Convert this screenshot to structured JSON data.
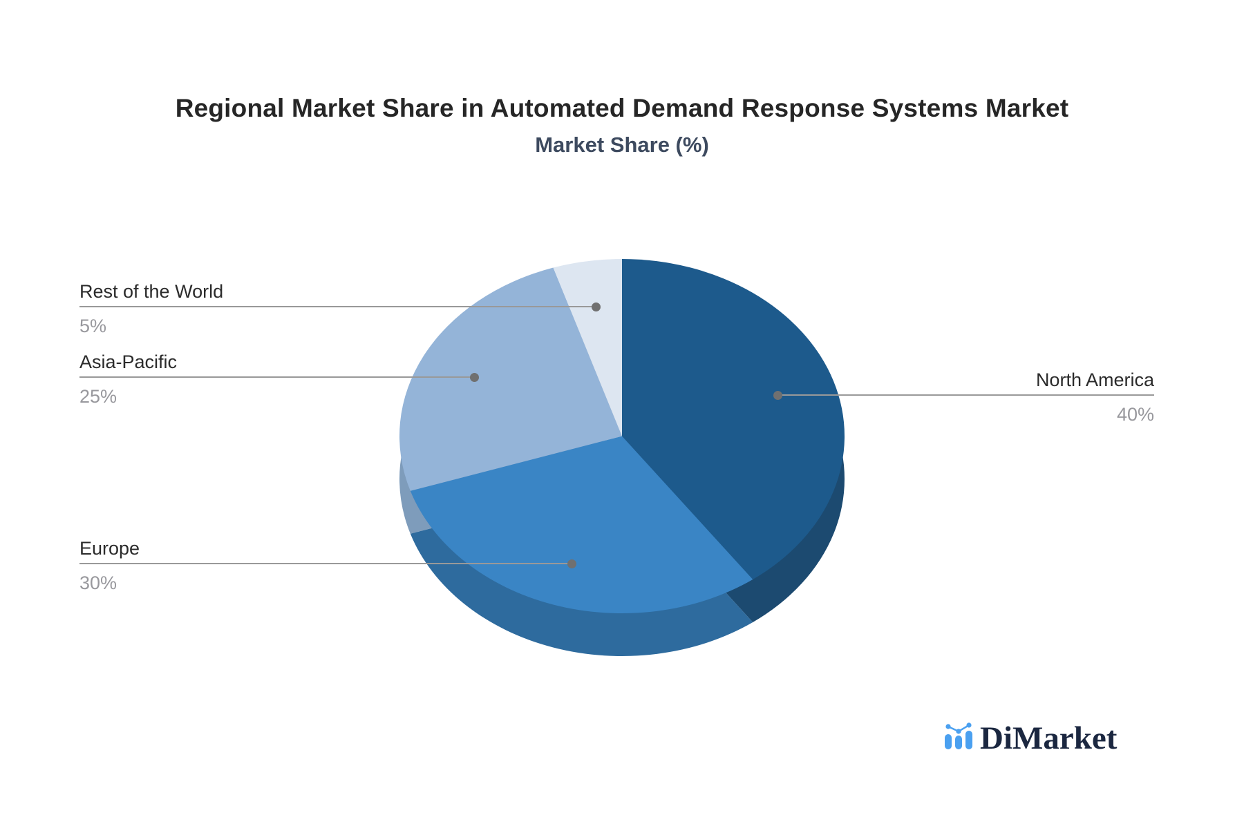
{
  "header": {
    "title": "Regional Market Share in Automated Demand Response Systems Market",
    "subtitle": "Market Share (%)"
  },
  "chart_data": {
    "type": "pie",
    "title": "Regional Market Share in Automated Demand Response Systems Market",
    "subtitle": "Market Share (%)",
    "unit": "%",
    "start_position": "top",
    "direction": "clockwise",
    "style": "3d-pie",
    "categories": [
      "North America",
      "Europe",
      "Asia-Pacific",
      "Rest of the World"
    ],
    "values": [
      40,
      30,
      25,
      5
    ],
    "slices": [
      {
        "label": "North America",
        "value": 40,
        "pct_text": "40%",
        "color": "#1d5a8c",
        "side_color": "#1c4a70",
        "callout_side": "right"
      },
      {
        "label": "Europe",
        "value": 30,
        "pct_text": "30%",
        "color": "#3a85c5",
        "side_color": "#2e6b9e",
        "callout_side": "left"
      },
      {
        "label": "Asia-Pacific",
        "value": 25,
        "pct_text": "25%",
        "color": "#94b4d8",
        "side_color": "#7e9cbb",
        "callout_side": "left"
      },
      {
        "label": "Rest of the World",
        "value": 5,
        "pct_text": "5%",
        "color": "#dde6f1",
        "side_color": "#b9c6d6",
        "callout_side": "left"
      }
    ],
    "leader_line_color": "#999999",
    "leader_dot_color": "#707070",
    "label_color": "#2b2b2b",
    "pct_color": "#98989d",
    "legend_position": "none",
    "grid": false
  },
  "branding": {
    "logo_text": "DiMarket",
    "logo_icon": "bar-chart-sparkline-icon",
    "logo_accent_color": "#4aa0f0",
    "logo_text_color": "#1b2740"
  }
}
